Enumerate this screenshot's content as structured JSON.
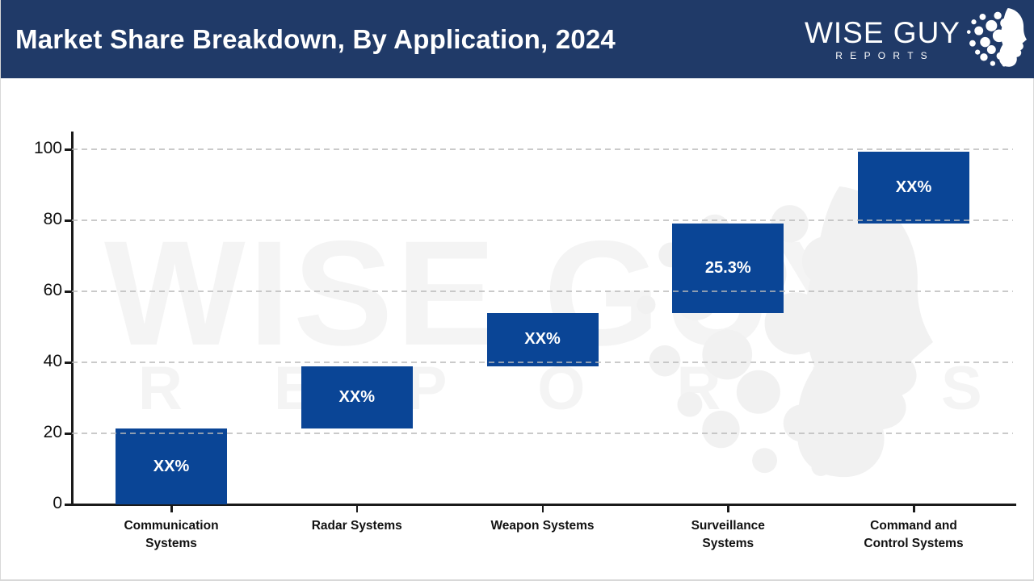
{
  "header": {
    "title": "Market Share Breakdown, By Application, 2024",
    "logo": {
      "brand": "WISE GUY",
      "sub": "R E P O R T S"
    }
  },
  "watermark": {
    "brand": "WISE GUY",
    "sub": "R E P O R T S"
  },
  "chart_data": {
    "type": "bar",
    "subtype": "waterfall",
    "title": "Market Share Breakdown, By Application, 2024",
    "categories": [
      "Communication Systems",
      "Radar Systems",
      "Weapon Systems",
      "Surveillance Systems",
      "Command and Control Systems"
    ],
    "bars": [
      {
        "category": "Communication Systems",
        "start": 0,
        "end": 21.3,
        "label": "XX%"
      },
      {
        "category": "Radar Systems",
        "start": 21.3,
        "end": 38.9,
        "label": "XX%"
      },
      {
        "category": "Weapon Systems",
        "start": 38.9,
        "end": 53.9,
        "label": "XX%"
      },
      {
        "category": "Surveillance Systems",
        "start": 53.9,
        "end": 79.2,
        "label": "25.3%"
      },
      {
        "category": "Command and Control Systems",
        "start": 79.2,
        "end": 99.3,
        "label": "XX%"
      }
    ],
    "xlabel": "",
    "ylabel": "",
    "ylim": [
      0,
      104.5
    ],
    "yticks": [
      0,
      20,
      40,
      60,
      80,
      100
    ],
    "grid": "dashed-horizontal",
    "legend": "none",
    "colors": {
      "bar": "#0a4596",
      "bar_label": "#ffffff",
      "header_bg": "#203a68",
      "grid": "#dcdcdc",
      "axis": "#1a1a1a",
      "tick_label": "#111111",
      "watermark": "#f3f3f3"
    }
  }
}
